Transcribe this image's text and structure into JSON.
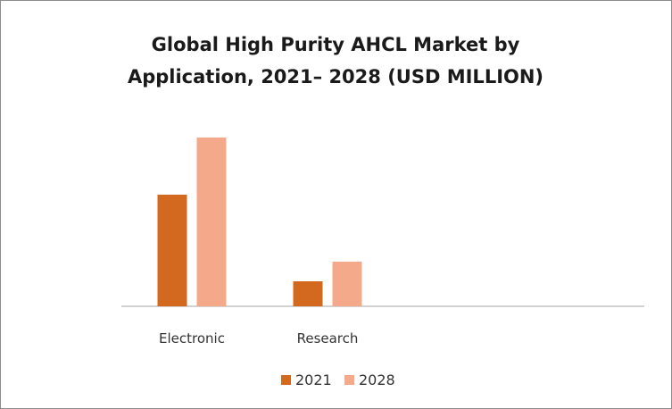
{
  "chart_data": {
    "type": "bar",
    "title_lines": [
      "Global High Purity AHCL Market by",
      "Application, 2021– 2028 (USD MILLION)"
    ],
    "categories": [
      "Electronic",
      "Research"
    ],
    "series": [
      {
        "name": "2021",
        "values": [
          125,
          28
        ],
        "color": "#d2691e"
      },
      {
        "name": "2028",
        "values": [
          189,
          50
        ],
        "color": "#f4a98a"
      }
    ],
    "ylim": [
      0,
      200
    ],
    "grid": false,
    "legend_position": "bottom"
  }
}
